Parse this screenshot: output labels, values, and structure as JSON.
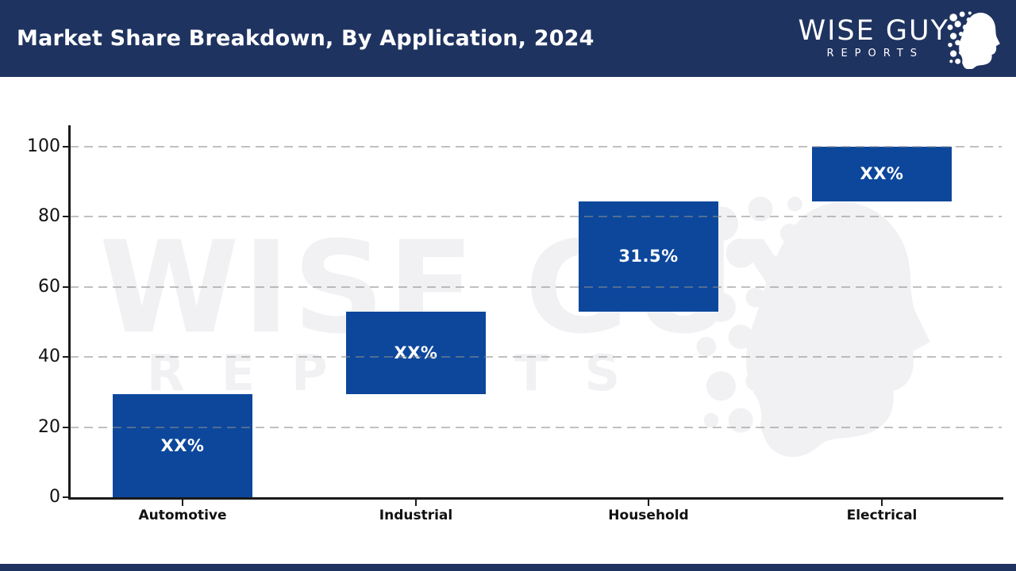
{
  "header": {
    "title": "Market Share Breakdown, By Application, 2024",
    "bg_color": "#1f3360",
    "logo": {
      "line1": "WISE GUY",
      "line2": "REPORTS"
    }
  },
  "watermark": {
    "line1": "WISE GUY",
    "line2": "REPORTS"
  },
  "chart_data": {
    "type": "bar",
    "subtype": "waterfall-floating-bars",
    "title": "Market Share Breakdown, By Application, 2024",
    "categories": [
      "Automotive",
      "Industrial",
      "Household",
      "Electrical"
    ],
    "segments": [
      {
        "category": "Automotive",
        "start": 0,
        "end": 29.5,
        "label": "XX%"
      },
      {
        "category": "Industrial",
        "start": 29.5,
        "end": 53,
        "label": "XX%"
      },
      {
        "category": "Household",
        "start": 53,
        "end": 84.5,
        "label": "31.5%"
      },
      {
        "category": "Electrical",
        "start": 84.5,
        "end": 100,
        "label": "XX%"
      }
    ],
    "yticks": [
      0,
      20,
      40,
      60,
      80,
      100
    ],
    "ylim": [
      0,
      106
    ],
    "xlabel": "",
    "ylabel": "",
    "grid": "horizontal-dashed-over-bars",
    "bar_color": "#0c479c",
    "bar_label_color": "#ffffff",
    "axis_color": "#1a1a1a",
    "gridline_color": "#8c8c8c"
  },
  "footer": {
    "bar_color": "#1f3360"
  }
}
